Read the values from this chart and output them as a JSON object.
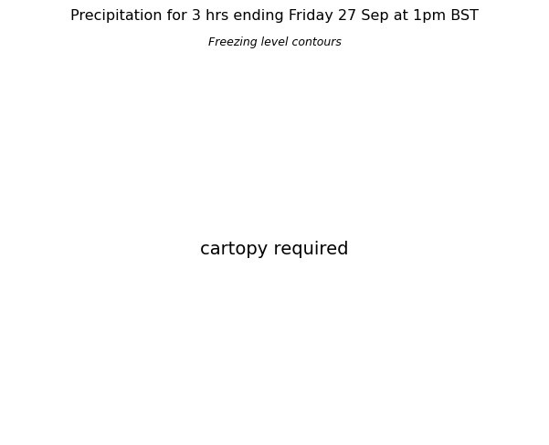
{
  "title": "Precipitation for 3 hrs ending Friday 27 Sep at 1pm BST",
  "subtitle": "Freezing level contours",
  "title_fontsize": 11.5,
  "subtitle_fontsize": 9,
  "background_color": "#ffffff",
  "ocean_color": "#d0d8ee",
  "land_color": "#888888",
  "contour_color": "#ff0000",
  "fig_width": 6.01,
  "fig_height": 4.88,
  "dpi": 100,
  "extent": [
    -25,
    30,
    35,
    65
  ]
}
